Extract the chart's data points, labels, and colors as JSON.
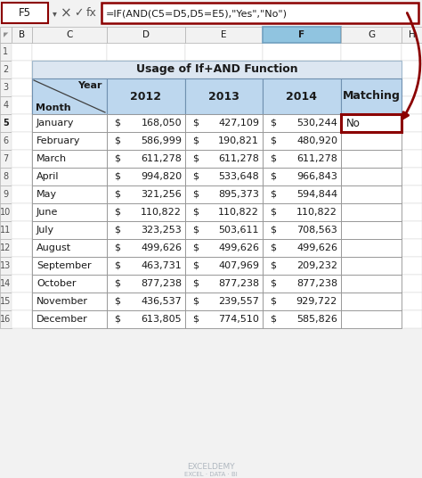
{
  "title": "Usage of If+AND Function",
  "formula_bar_text": "=IF(AND(C5=D5,D5=E5),\"Yes\",\"No\")",
  "formula_bar_cell": "F5",
  "months": [
    "January",
    "February",
    "March",
    "April",
    "May",
    "June",
    "July",
    "August",
    "September",
    "October",
    "November",
    "December"
  ],
  "col_2012": [
    168050,
    586999,
    611278,
    994820,
    321256,
    110822,
    323253,
    499626,
    463731,
    877238,
    436537,
    613805
  ],
  "col_2013": [
    427109,
    190821,
    611278,
    533648,
    895373,
    110822,
    503611,
    499626,
    407969,
    877238,
    239557,
    774510
  ],
  "col_2014": [
    530244,
    480920,
    611278,
    966843,
    594844,
    110822,
    708563,
    499626,
    209232,
    877238,
    929722,
    585826
  ],
  "matching": [
    "No",
    "",
    "",
    "",
    "",
    "",
    "",
    "",
    "",
    "",
    "",
    ""
  ],
  "header_bg": "#bdd7ee",
  "title_bg": "#dce6f1",
  "excel_bg": "#f2f2f2",
  "white": "#ffffff",
  "selected_border": "#8B0000",
  "col_header_selected_bg": "#90c4e0",
  "arrow_color": "#8B0000",
  "watermark_color": "#b0b8c0",
  "formula_box_border": "#8B0000"
}
